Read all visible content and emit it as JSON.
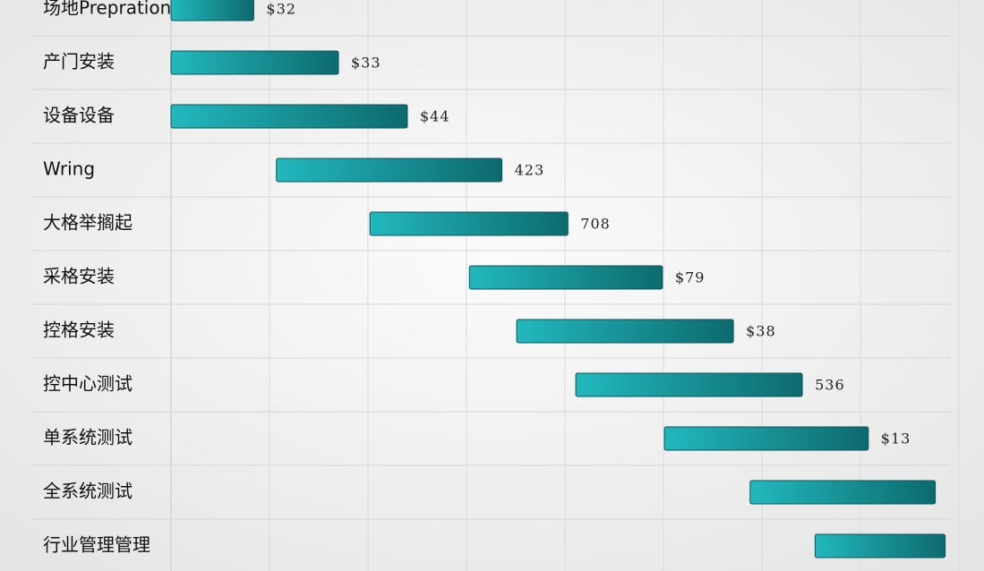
{
  "chart_data": {
    "type": "gantt",
    "categories": [
      "场地Prepration",
      "产门安装",
      "设备设备",
      "Wring",
      "大格举搁起",
      "采格安装",
      "控格安装",
      "控中心测试",
      "单系统测试",
      "全系统测试",
      "行业管理管理"
    ],
    "start": [
      0,
      0,
      0,
      1.07,
      2.02,
      3.03,
      3.51,
      4.11,
      5.01,
      5.88,
      6.54
    ],
    "end": [
      0.84,
      1.7,
      2.4,
      3.36,
      4.03,
      4.99,
      5.71,
      6.41,
      7.08,
      7.76,
      7.86
    ],
    "bar_labels": [
      "$32",
      "$33",
      "$44",
      "423",
      "708",
      "$79",
      "$38",
      "536",
      "$13",
      null,
      null
    ],
    "color": "#149ea2",
    "xlim": [
      0,
      8
    ],
    "grid": true
  }
}
